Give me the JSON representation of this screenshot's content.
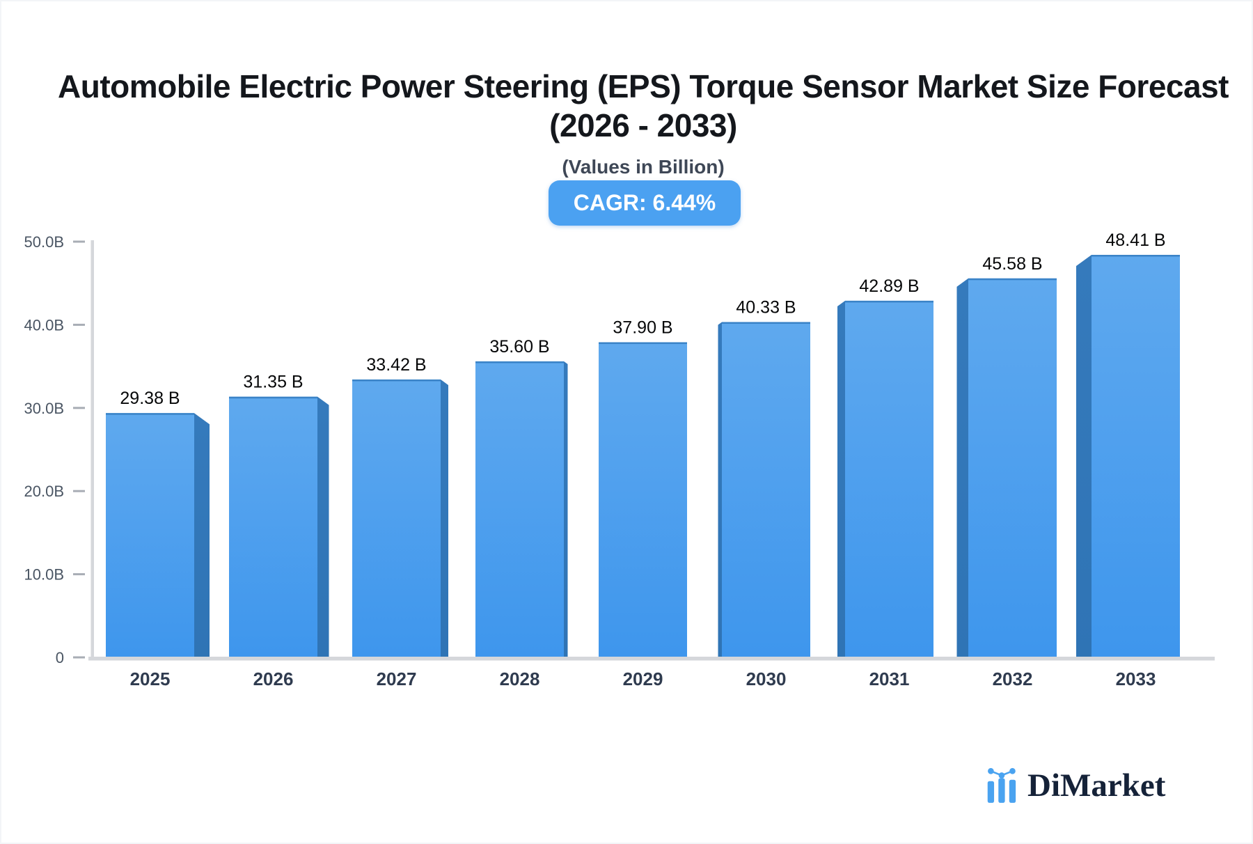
{
  "header": {
    "title_line1": "Automobile Electric Power Steering (EPS) Torque Sensor Market Size Forecast",
    "title_line2": "(2026 - 2033)",
    "subtitle": "(Values in Billion)",
    "cagr_badge": "CAGR: 6.44%"
  },
  "chart_data": {
    "type": "bar",
    "title": "Automobile Electric Power Steering (EPS) Torque Sensor Market Size Forecast (2026 - 2033)",
    "subtitle": "Values in Billion",
    "cagr_percent": 6.44,
    "categories": [
      "2025",
      "2026",
      "2027",
      "2028",
      "2029",
      "2030",
      "2031",
      "2032",
      "2033"
    ],
    "values": [
      29.38,
      31.35,
      33.42,
      35.6,
      37.9,
      40.33,
      42.89,
      45.58,
      48.41
    ],
    "value_labels": [
      "29.38 B",
      "31.35 B",
      "33.42 B",
      "35.60 B",
      "37.90 B",
      "40.33 B",
      "42.89 B",
      "45.58 B",
      "48.41 B"
    ],
    "xlabel": "",
    "ylabel": "",
    "ylim": [
      0,
      50
    ],
    "ytick_values": [
      0,
      10,
      20,
      30,
      40,
      50
    ],
    "ytick_labels": [
      "0",
      "10.0B",
      "20.0B",
      "30.0B",
      "40.0B",
      "50.0B"
    ],
    "grid": false,
    "legend": "none",
    "style_3d": true
  },
  "colors": {
    "bar_face_top": "#5FA9EE",
    "bar_face_bottom": "#3E96ED",
    "bar_side": "#2F74B5",
    "bar_top_edge": "#3A83C7",
    "badge_bg": "#4BA1F1",
    "axis_line": "#D5D7DB",
    "tick_dash": "#A8ADB5",
    "y_label": "#4A5563",
    "x_label": "#2F3B4F",
    "value_label": "#060708",
    "logo_blue": "#4AA3F0",
    "logo_navy": "#152238"
  },
  "logo": {
    "text": "DiMarket",
    "icon": "bar-chart-logo-icon"
  }
}
